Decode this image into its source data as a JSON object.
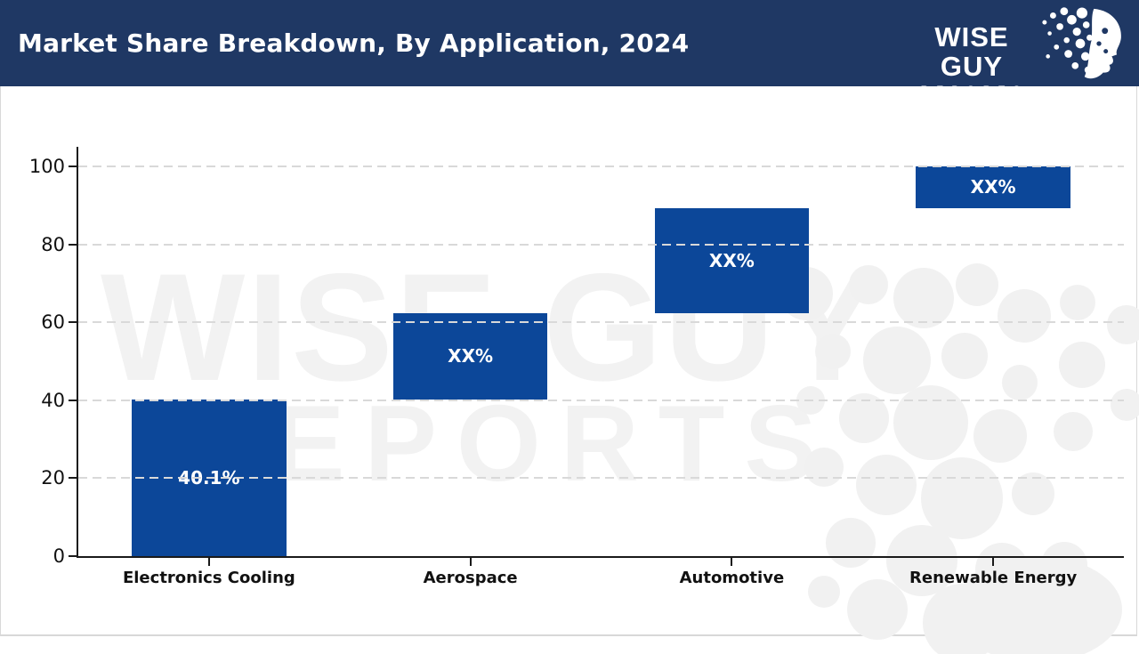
{
  "header": {
    "title": "Market Share Breakdown, By Application, 2024",
    "logo": {
      "line1": "WISE GUY",
      "line2": "REPORTS"
    },
    "background_color": "#1f3864"
  },
  "watermark": {
    "line1": "WISE GUY",
    "line2": "REPORTS"
  },
  "chart_data": {
    "type": "bar",
    "subtype": "waterfall",
    "title": "Market Share Breakdown, By Application, 2024",
    "xlabel": "",
    "ylabel": "",
    "categories": [
      "Electronics Cooling",
      "Aerospace",
      "Automotive",
      "Renewable Energy"
    ],
    "series": [
      {
        "name": "Market Share",
        "segments": [
          {
            "category": "Electronics Cooling",
            "from": 0,
            "to": 40.1,
            "label": "40.1%"
          },
          {
            "category": "Aerospace",
            "from": 40.1,
            "to": 62.4,
            "label": "XX%"
          },
          {
            "category": "Automotive",
            "from": 62.4,
            "to": 89.3,
            "label": "XX%"
          },
          {
            "category": "Renewable Energy",
            "from": 89.3,
            "to": 100,
            "label": "XX%"
          }
        ]
      }
    ],
    "ylim": [
      0,
      105
    ],
    "yticks": [
      0,
      20,
      40,
      60,
      80,
      100
    ],
    "grid": "horizontal-dashed",
    "grid_on_top": true,
    "legend": "none",
    "bar_color": "#0c4799",
    "bar_label_color": "#ffffff",
    "bar_width_fraction": 0.59
  }
}
